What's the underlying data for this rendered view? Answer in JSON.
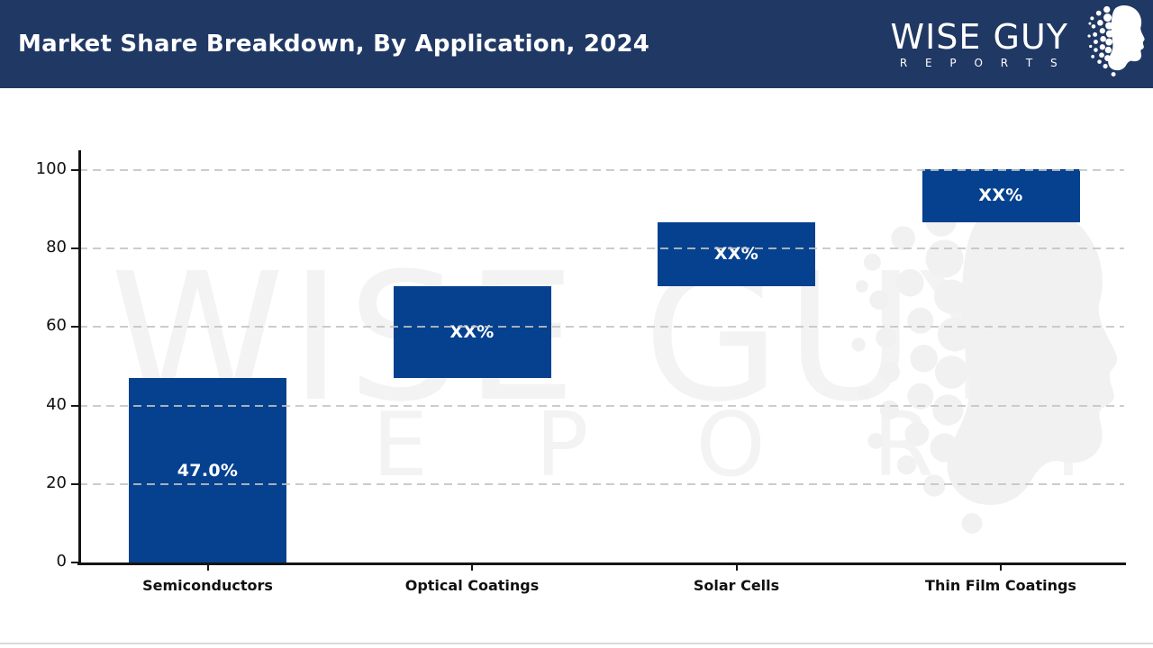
{
  "header": {
    "title": "Market Share Breakdown, By Application, 2024",
    "bg_color": "#203864",
    "logo": {
      "line1": "WISE GUY",
      "line2": "R E P O R T S"
    }
  },
  "watermark": {
    "line1": "WISE GUY",
    "line2": "R E P O R T S"
  },
  "chart_data": {
    "type": "bar",
    "subtype": "floating-waterfall",
    "title": "Market Share Breakdown, By Application, 2024",
    "categories": [
      "Semiconductors",
      "Optical Coatings",
      "Solar Cells",
      "Thin Film Coatings"
    ],
    "series": [
      {
        "category": "Semiconductors",
        "label": "47.0%",
        "start": 0,
        "end": 47
      },
      {
        "category": "Optical Coatings",
        "label": "XX%",
        "start": 47,
        "end": 70.5
      },
      {
        "category": "Solar Cells",
        "label": "XX%",
        "start": 70.5,
        "end": 86.7
      },
      {
        "category": "Thin Film Coatings",
        "label": "XX%",
        "start": 86.7,
        "end": 100.3
      }
    ],
    "ylim": [
      0,
      105
    ],
    "yticks": [
      0,
      20,
      40,
      60,
      80,
      100
    ],
    "grid": "horizontal-dashed",
    "legend": "none",
    "bar_color": "#05418f",
    "bar_label_color": "#ffffff",
    "axis_color": "#151515",
    "gridline_color": "#c3c3c3"
  }
}
